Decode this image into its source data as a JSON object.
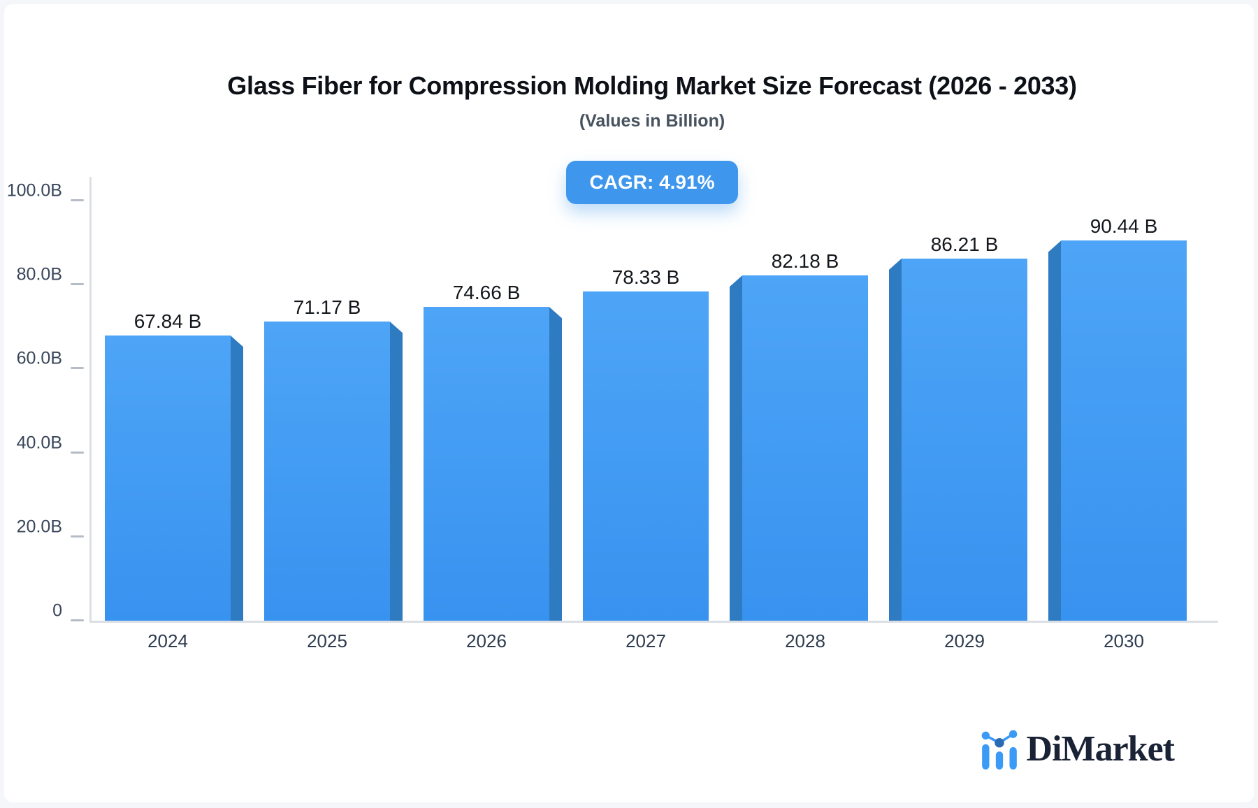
{
  "header": {
    "title": "Glass Fiber for Compression Molding Market Size Forecast (2026 - 2033)",
    "subtitle": "(Values in Billion)",
    "cagr_badge": "CAGR: 4.91%"
  },
  "chart_data": {
    "type": "bar",
    "title": "Glass Fiber for Compression Molding Market Size Forecast (2026 - 2033)",
    "subtitle": "(Values in Billion)",
    "categories": [
      "2024",
      "2025",
      "2026",
      "2027",
      "2028",
      "2029",
      "2030"
    ],
    "values": [
      67.84,
      71.17,
      74.66,
      78.33,
      82.18,
      86.21,
      90.44
    ],
    "bar_labels": [
      "67.84 B",
      "71.17 B",
      "74.66 B",
      "78.33 B",
      "82.18 B",
      "86.21 B",
      "90.44 B"
    ],
    "cagr": "4.91%",
    "xlabel": "",
    "ylabel": "",
    "ylim": [
      0,
      100
    ],
    "grid": false,
    "legend": "none",
    "y_ticks": [
      {
        "value": 0,
        "label": "0"
      },
      {
        "value": 20,
        "label": "20.0B"
      },
      {
        "value": 40,
        "label": "40.0B"
      },
      {
        "value": 60,
        "label": "60.0B"
      },
      {
        "value": 80,
        "label": "80.0B"
      },
      {
        "value": 100,
        "label": "100.0B"
      }
    ]
  },
  "colors": {
    "page_background": "#f4f6f9",
    "card_background": "#ffffff",
    "bar_top": "#4ea5f7",
    "bar_bottom": "#3892ef",
    "bar_side": "#2e7bc2",
    "badge_background": "#3e97ec",
    "badge_text": "#ffffff",
    "axis_line": "#dbdee3",
    "tick_dash": "#b5bcc6",
    "title_text": "#0d1117",
    "subtitle_text": "#47525f",
    "value_label_text": "#14181d",
    "year_label_text": "#2d3b4e",
    "axis_label_text": "#39465a",
    "logo_text": "#1a2235",
    "logo_icon_blue": "#3b9af5",
    "logo_icon_dark_dot": "#2a6cb3"
  },
  "logo": {
    "text": "DiMarket"
  }
}
